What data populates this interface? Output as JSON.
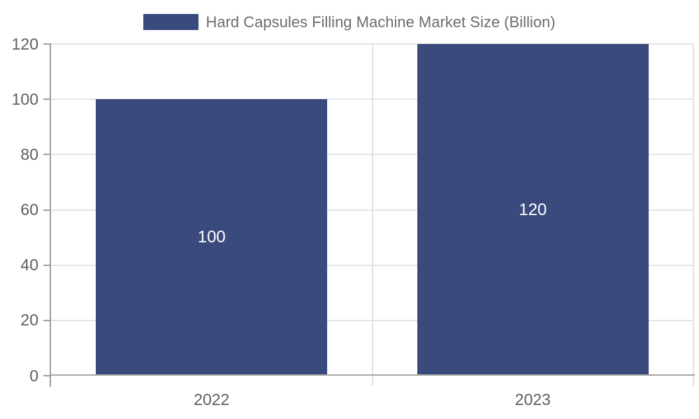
{
  "chart_data": {
    "type": "bar",
    "title": "Hard Capsules Filling Machine Market Size (Billion)",
    "legend": {
      "position": "top",
      "label": "Hard Capsules Filling Machine Market Size (Billion)"
    },
    "categories": [
      "2022",
      "2023"
    ],
    "values": [
      100,
      120
    ],
    "value_labels": [
      "100",
      "120"
    ],
    "xlabel": "",
    "ylabel": "",
    "ylim": [
      0,
      120
    ],
    "yticks": [
      0,
      20,
      40,
      60,
      80,
      100,
      120
    ],
    "grid": true,
    "colors": {
      "bar": "#3A4A7D",
      "bar_label_text": "#FFFFFF",
      "axis_x_line": "#A6A6A6",
      "axis_y_line": "#9E9E9E",
      "gridline": "#E4E4E4",
      "boundary_line": "#E2E2E2",
      "tick_label": "#5E5E5E",
      "legend_text": "#6D6D6D",
      "background": "#FFFFFF"
    }
  }
}
